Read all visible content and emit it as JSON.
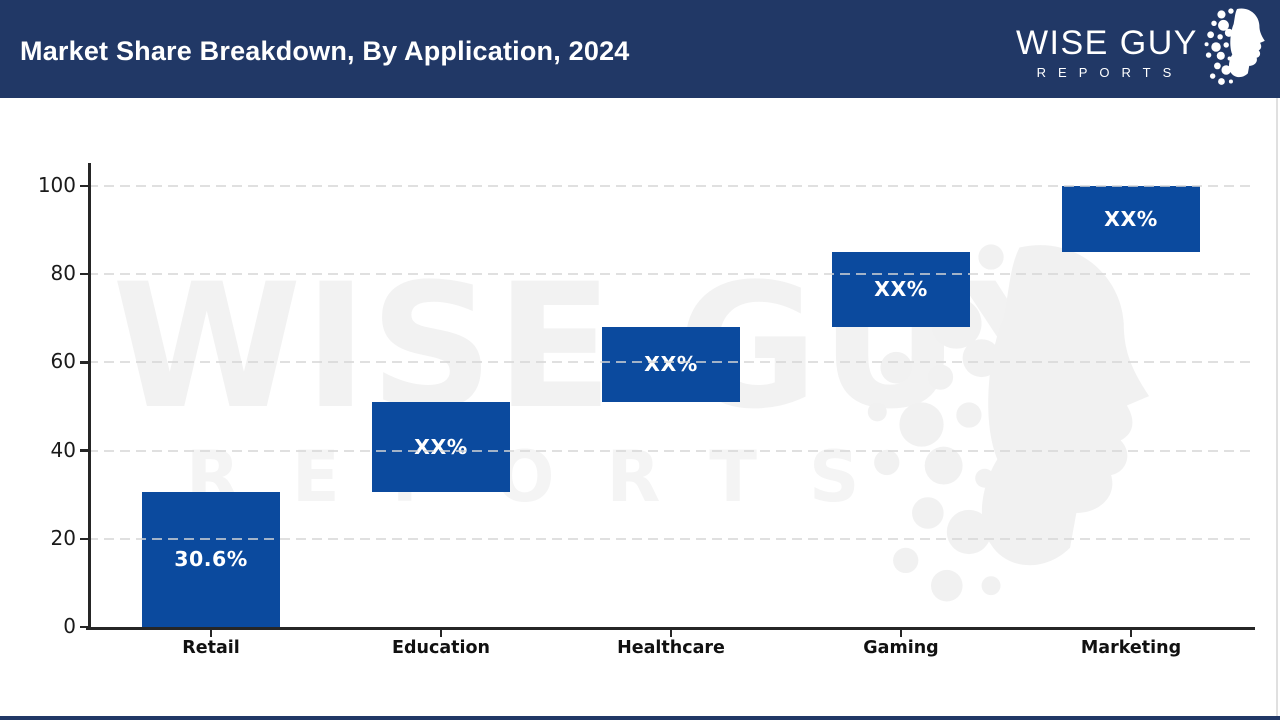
{
  "header": {
    "title": "Market Share Breakdown, By Application, 2024",
    "logo": {
      "name_line": "WISE GUY",
      "sub_line": "REPORTS"
    }
  },
  "watermark": {
    "name_line": "WISE GUY",
    "sub_line": "REPORTS"
  },
  "chart_data": {
    "type": "bar",
    "variant": "waterfall",
    "title": "Market Share Breakdown, By Application, 2024",
    "categories": [
      "Retail",
      "Education",
      "Healthcare",
      "Gaming",
      "Marketing"
    ],
    "segments": [
      {
        "category": "Retail",
        "start": 0,
        "end": 30.6,
        "label": "30.6%"
      },
      {
        "category": "Education",
        "start": 30.6,
        "end": 51,
        "label": "XX%"
      },
      {
        "category": "Healthcare",
        "start": 51,
        "end": 68,
        "label": "XX%"
      },
      {
        "category": "Gaming",
        "start": 68,
        "end": 85,
        "label": "XX%"
      },
      {
        "category": "Marketing",
        "start": 85,
        "end": 100,
        "label": "XX%"
      }
    ],
    "xlabel": "",
    "ylabel": "",
    "ylim": [
      0,
      100
    ],
    "yticks": [
      0,
      20,
      40,
      60,
      80,
      100
    ],
    "grid": "horizontal-dashed",
    "legend": "none",
    "bar_color": "#0b4a9e",
    "bar_label_color": "#ffffff"
  },
  "colors": {
    "header_bg": "#213866",
    "footer_bg": "#213866",
    "bar": "#0b4a9e",
    "grid": "#d6d6d6",
    "axis": "#262626",
    "watermark": "#f2f2f2"
  }
}
